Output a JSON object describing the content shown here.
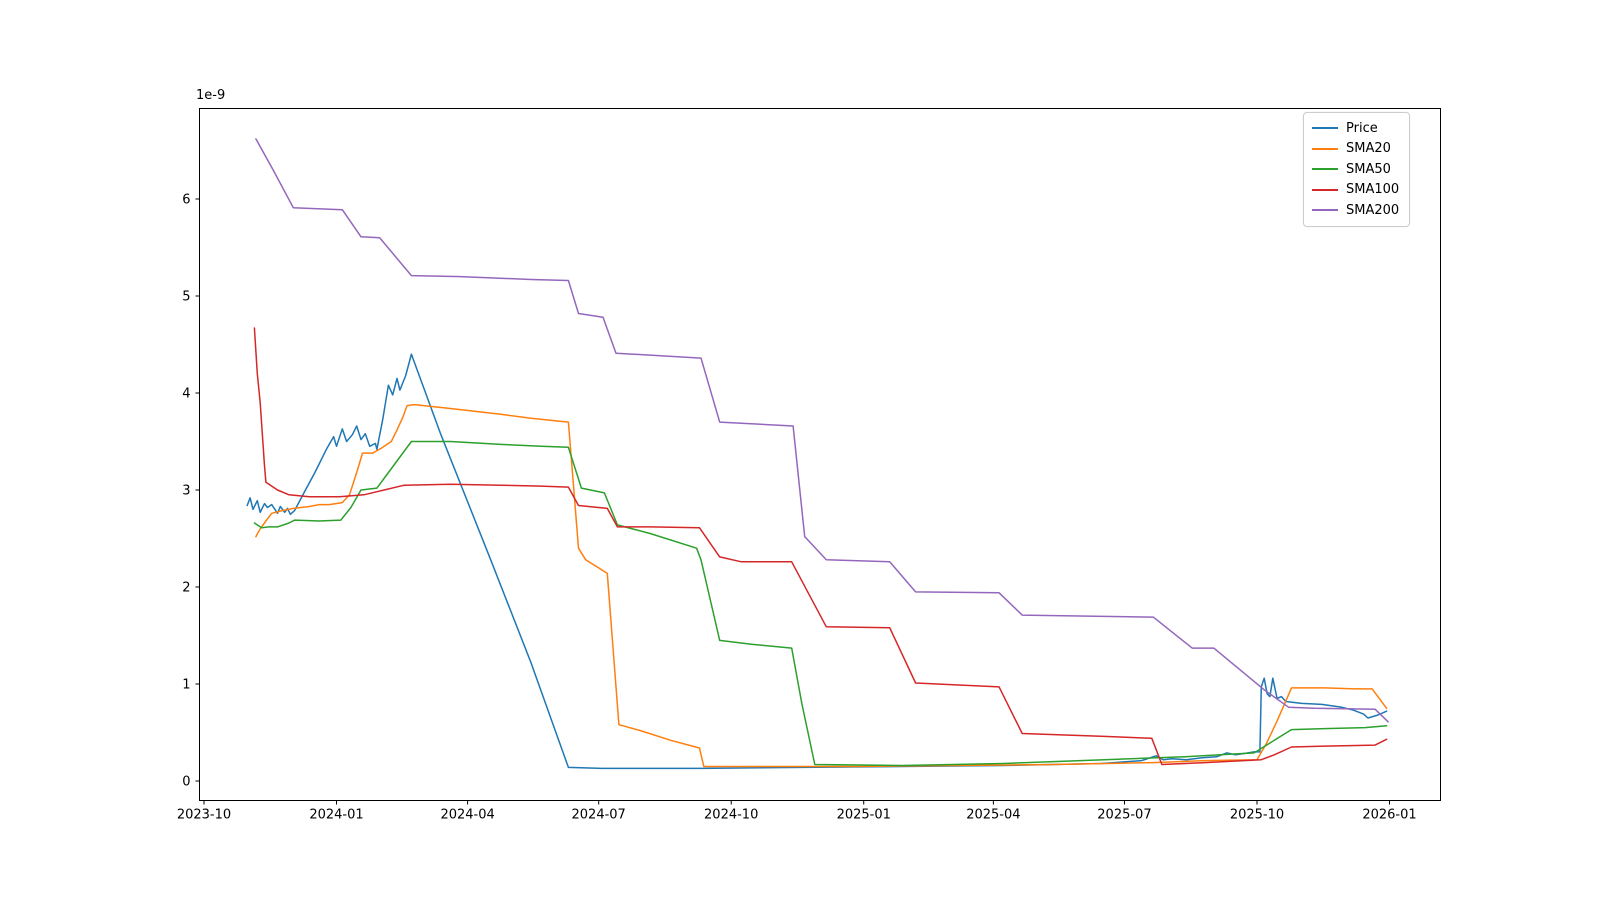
{
  "axes": {
    "offset_text": "1e-9",
    "grid": false,
    "background": "#ffffff",
    "spine_color": "#000000",
    "x_ticks": [
      {
        "date": "2023-10-01",
        "label": "2023-10"
      },
      {
        "date": "2024-01-01",
        "label": "2024-01"
      },
      {
        "date": "2024-04-01",
        "label": "2024-04"
      },
      {
        "date": "2024-07-01",
        "label": "2024-07"
      },
      {
        "date": "2024-10-01",
        "label": "2024-10"
      },
      {
        "date": "2025-01-01",
        "label": "2025-01"
      },
      {
        "date": "2025-04-01",
        "label": "2025-04"
      },
      {
        "date": "2025-07-01",
        "label": "2025-07"
      },
      {
        "date": "2025-10-01",
        "label": "2025-10"
      },
      {
        "date": "2026-01-01",
        "label": "2026-01"
      }
    ],
    "y_ticks": [
      {
        "value": 0,
        "label": "0"
      },
      {
        "value": 1,
        "label": "1"
      },
      {
        "value": 2,
        "label": "2"
      },
      {
        "value": 3,
        "label": "3"
      },
      {
        "value": 4,
        "label": "4"
      },
      {
        "value": 5,
        "label": "5"
      },
      {
        "value": 6,
        "label": "6"
      }
    ]
  },
  "legend": {
    "position": "upper-right",
    "entries": [
      {
        "label": "Price",
        "color": "#1f77b4"
      },
      {
        "label": "SMA20",
        "color": "#ff7f0e"
      },
      {
        "label": "SMA50",
        "color": "#2ca02c"
      },
      {
        "label": "SMA100",
        "color": "#d62728"
      },
      {
        "label": "SMA200",
        "color": "#9467bd"
      }
    ]
  },
  "chart_data": {
    "type": "line",
    "title": "",
    "xlabel": "",
    "ylabel": "",
    "y_unit_scale": "1e-9",
    "ylim": [
      -0.21,
      6.94
    ],
    "x_range": [
      "2023-09-28",
      "2026-02-05"
    ],
    "series": [
      {
        "name": "Price",
        "color": "#1f77b4",
        "points": [
          [
            "2023-10-31",
            2.84
          ],
          [
            "2023-11-02",
            2.92
          ],
          [
            "2023-11-04",
            2.8
          ],
          [
            "2023-11-07",
            2.89
          ],
          [
            "2023-11-09",
            2.77
          ],
          [
            "2023-11-12",
            2.86
          ],
          [
            "2023-11-14",
            2.82
          ],
          [
            "2023-11-17",
            2.85
          ],
          [
            "2023-11-21",
            2.76
          ],
          [
            "2023-11-23",
            2.83
          ],
          [
            "2023-11-26",
            2.77
          ],
          [
            "2023-11-28",
            2.81
          ],
          [
            "2023-11-30",
            2.75
          ],
          [
            "2023-12-03",
            2.79
          ],
          [
            "2023-12-09",
            2.96
          ],
          [
            "2023-12-17",
            3.18
          ],
          [
            "2023-12-25",
            3.42
          ],
          [
            "2023-12-30",
            3.55
          ],
          [
            "2024-01-01",
            3.45
          ],
          [
            "2024-01-05",
            3.63
          ],
          [
            "2024-01-08",
            3.5
          ],
          [
            "2024-01-12",
            3.57
          ],
          [
            "2024-01-15",
            3.66
          ],
          [
            "2024-01-18",
            3.52
          ],
          [
            "2024-01-21",
            3.58
          ],
          [
            "2024-01-24",
            3.45
          ],
          [
            "2024-01-28",
            3.48
          ],
          [
            "2024-01-29",
            3.42
          ],
          [
            "2024-02-02",
            3.72
          ],
          [
            "2024-02-06",
            4.08
          ],
          [
            "2024-02-09",
            3.98
          ],
          [
            "2024-02-12",
            4.15
          ],
          [
            "2024-02-14",
            4.03
          ],
          [
            "2024-02-18",
            4.18
          ],
          [
            "2024-02-22",
            4.4
          ],
          [
            "2024-03-13",
            3.59
          ],
          [
            "2024-04-17",
            2.28
          ],
          [
            "2024-05-15",
            1.22
          ],
          [
            "2024-06-10",
            0.14
          ],
          [
            "2024-07-03",
            0.13
          ],
          [
            "2024-09-10",
            0.13
          ],
          [
            "2024-11-19",
            0.14
          ],
          [
            "2025-01-27",
            0.15
          ],
          [
            "2025-04-07",
            0.16
          ],
          [
            "2025-06-15",
            0.18
          ],
          [
            "2025-07-13",
            0.21
          ],
          [
            "2025-07-23",
            0.26
          ],
          [
            "2025-07-28",
            0.22
          ],
          [
            "2025-08-03",
            0.23
          ],
          [
            "2025-08-13",
            0.22
          ],
          [
            "2025-08-24",
            0.24
          ],
          [
            "2025-09-03",
            0.25
          ],
          [
            "2025-09-10",
            0.29
          ],
          [
            "2025-09-16",
            0.27
          ],
          [
            "2025-09-21",
            0.28
          ],
          [
            "2025-09-29",
            0.3
          ],
          [
            "2025-10-03",
            0.3
          ],
          [
            "2025-10-04",
            0.97
          ],
          [
            "2025-10-06",
            1.06
          ],
          [
            "2025-10-08",
            0.9
          ],
          [
            "2025-10-10",
            0.87
          ],
          [
            "2025-10-12",
            1.06
          ],
          [
            "2025-10-15",
            0.85
          ],
          [
            "2025-10-18",
            0.87
          ],
          [
            "2025-10-21",
            0.82
          ],
          [
            "2025-11-01",
            0.8
          ],
          [
            "2025-11-15",
            0.79
          ],
          [
            "2025-11-29",
            0.76
          ],
          [
            "2025-12-07",
            0.73
          ],
          [
            "2025-12-14",
            0.69
          ],
          [
            "2025-12-17",
            0.65
          ],
          [
            "2025-12-24",
            0.68
          ],
          [
            "2025-12-30",
            0.72
          ]
        ]
      },
      {
        "name": "SMA20",
        "color": "#ff7f0e",
        "points": [
          [
            "2023-11-06",
            2.52
          ],
          [
            "2023-11-09",
            2.6
          ],
          [
            "2023-11-13",
            2.68
          ],
          [
            "2023-11-17",
            2.76
          ],
          [
            "2023-11-25",
            2.79
          ],
          [
            "2023-12-02",
            2.81
          ],
          [
            "2023-12-13",
            2.83
          ],
          [
            "2023-12-20",
            2.85
          ],
          [
            "2023-12-27",
            2.85
          ],
          [
            "2024-01-05",
            2.87
          ],
          [
            "2024-01-10",
            2.95
          ],
          [
            "2024-01-15",
            3.18
          ],
          [
            "2024-01-19",
            3.38
          ],
          [
            "2024-01-26",
            3.38
          ],
          [
            "2024-02-01",
            3.43
          ],
          [
            "2024-02-08",
            3.5
          ],
          [
            "2024-02-12",
            3.62
          ],
          [
            "2024-02-16",
            3.75
          ],
          [
            "2024-02-19",
            3.87
          ],
          [
            "2024-02-24",
            3.88
          ],
          [
            "2024-03-20",
            3.84
          ],
          [
            "2024-04-24",
            3.78
          ],
          [
            "2024-05-15",
            3.74
          ],
          [
            "2024-06-10",
            3.7
          ],
          [
            "2024-06-17",
            2.4
          ],
          [
            "2024-06-22",
            2.28
          ],
          [
            "2024-07-07",
            2.14
          ],
          [
            "2024-07-15",
            0.58
          ],
          [
            "2024-07-30",
            0.52
          ],
          [
            "2024-08-20",
            0.42
          ],
          [
            "2024-09-09",
            0.34
          ],
          [
            "2024-09-12",
            0.15
          ],
          [
            "2024-10-15",
            0.15
          ],
          [
            "2024-12-24",
            0.15
          ],
          [
            "2025-03-04",
            0.16
          ],
          [
            "2025-05-13",
            0.17
          ],
          [
            "2025-07-21",
            0.19
          ],
          [
            "2025-08-26",
            0.21
          ],
          [
            "2025-10-01",
            0.22
          ],
          [
            "2025-10-08",
            0.4
          ],
          [
            "2025-10-15",
            0.62
          ],
          [
            "2025-10-25",
            0.96
          ],
          [
            "2025-11-17",
            0.96
          ],
          [
            "2025-12-08",
            0.95
          ],
          [
            "2025-12-20",
            0.95
          ],
          [
            "2025-12-30",
            0.75
          ]
        ]
      },
      {
        "name": "SMA50",
        "color": "#2ca02c",
        "points": [
          [
            "2023-11-05",
            2.66
          ],
          [
            "2023-11-10",
            2.61
          ],
          [
            "2023-11-15",
            2.62
          ],
          [
            "2023-11-21",
            2.62
          ],
          [
            "2023-11-29",
            2.66
          ],
          [
            "2023-12-03",
            2.69
          ],
          [
            "2023-12-20",
            2.68
          ],
          [
            "2024-01-04",
            2.69
          ],
          [
            "2024-01-11",
            2.82
          ],
          [
            "2024-01-18",
            3.0
          ],
          [
            "2024-01-29",
            3.02
          ],
          [
            "2024-02-22",
            3.5
          ],
          [
            "2024-03-20",
            3.5
          ],
          [
            "2024-04-24",
            3.47
          ],
          [
            "2024-05-22",
            3.45
          ],
          [
            "2024-06-10",
            3.44
          ],
          [
            "2024-06-19",
            3.02
          ],
          [
            "2024-07-05",
            2.97
          ],
          [
            "2024-07-14",
            2.64
          ],
          [
            "2024-08-06",
            2.55
          ],
          [
            "2024-09-07",
            2.4
          ],
          [
            "2024-09-10",
            2.28
          ],
          [
            "2024-09-23",
            1.45
          ],
          [
            "2024-10-15",
            1.41
          ],
          [
            "2024-11-12",
            1.37
          ],
          [
            "2024-11-19",
            0.8
          ],
          [
            "2024-11-28",
            0.17
          ],
          [
            "2025-01-28",
            0.16
          ],
          [
            "2025-04-08",
            0.18
          ],
          [
            "2025-06-17",
            0.22
          ],
          [
            "2025-08-12",
            0.25
          ],
          [
            "2025-09-29",
            0.29
          ],
          [
            "2025-10-13",
            0.42
          ],
          [
            "2025-10-25",
            0.53
          ],
          [
            "2025-11-17",
            0.54
          ],
          [
            "2025-12-15",
            0.55
          ],
          [
            "2025-12-30",
            0.57
          ]
        ]
      },
      {
        "name": "SMA100",
        "color": "#d62728",
        "points": [
          [
            "2023-11-05",
            4.67
          ],
          [
            "2023-11-07",
            4.2
          ],
          [
            "2023-11-09",
            3.9
          ],
          [
            "2023-11-12",
            3.25
          ],
          [
            "2023-11-13",
            3.08
          ],
          [
            "2023-11-21",
            3.0
          ],
          [
            "2023-11-29",
            2.95
          ],
          [
            "2023-12-13",
            2.93
          ],
          [
            "2024-01-03",
            2.93
          ],
          [
            "2024-01-20",
            2.95
          ],
          [
            "2024-02-03",
            3.0
          ],
          [
            "2024-02-17",
            3.05
          ],
          [
            "2024-03-20",
            3.06
          ],
          [
            "2024-04-24",
            3.05
          ],
          [
            "2024-05-22",
            3.04
          ],
          [
            "2024-06-10",
            3.03
          ],
          [
            "2024-06-17",
            2.84
          ],
          [
            "2024-07-07",
            2.81
          ],
          [
            "2024-07-14",
            2.62
          ],
          [
            "2024-08-06",
            2.62
          ],
          [
            "2024-09-09",
            2.61
          ],
          [
            "2024-09-23",
            2.31
          ],
          [
            "2024-10-08",
            2.26
          ],
          [
            "2024-11-12",
            2.26
          ],
          [
            "2024-12-06",
            1.59
          ],
          [
            "2025-01-19",
            1.58
          ],
          [
            "2025-02-06",
            1.01
          ],
          [
            "2025-04-05",
            0.97
          ],
          [
            "2025-04-21",
            0.49
          ],
          [
            "2025-06-17",
            0.46
          ],
          [
            "2025-07-20",
            0.44
          ],
          [
            "2025-07-27",
            0.17
          ],
          [
            "2025-08-26",
            0.19
          ],
          [
            "2025-10-04",
            0.22
          ],
          [
            "2025-10-13",
            0.27
          ],
          [
            "2025-10-25",
            0.35
          ],
          [
            "2025-11-17",
            0.36
          ],
          [
            "2025-12-22",
            0.37
          ],
          [
            "2025-12-30",
            0.43
          ]
        ]
      },
      {
        "name": "SMA200",
        "color": "#9467bd",
        "points": [
          [
            "2023-11-06",
            6.62
          ],
          [
            "2023-11-18",
            6.3
          ],
          [
            "2023-12-02",
            5.91
          ],
          [
            "2024-01-05",
            5.89
          ],
          [
            "2024-01-18",
            5.61
          ],
          [
            "2024-01-31",
            5.6
          ],
          [
            "2024-02-22",
            5.21
          ],
          [
            "2024-03-27",
            5.2
          ],
          [
            "2024-05-15",
            5.17
          ],
          [
            "2024-06-10",
            5.16
          ],
          [
            "2024-06-17",
            4.82
          ],
          [
            "2024-07-04",
            4.78
          ],
          [
            "2024-07-13",
            4.41
          ],
          [
            "2024-09-10",
            4.36
          ],
          [
            "2024-09-23",
            3.7
          ],
          [
            "2024-11-13",
            3.66
          ],
          [
            "2024-11-21",
            2.52
          ],
          [
            "2024-12-06",
            2.28
          ],
          [
            "2025-01-19",
            2.26
          ],
          [
            "2025-02-06",
            1.95
          ],
          [
            "2025-04-05",
            1.94
          ],
          [
            "2025-04-21",
            1.71
          ],
          [
            "2025-07-21",
            1.69
          ],
          [
            "2025-08-17",
            1.37
          ],
          [
            "2025-09-01",
            1.37
          ],
          [
            "2025-10-06",
            0.94
          ],
          [
            "2025-10-23",
            0.76
          ],
          [
            "2025-11-10",
            0.75
          ],
          [
            "2025-12-22",
            0.74
          ],
          [
            "2025-12-31",
            0.61
          ]
        ]
      }
    ]
  }
}
